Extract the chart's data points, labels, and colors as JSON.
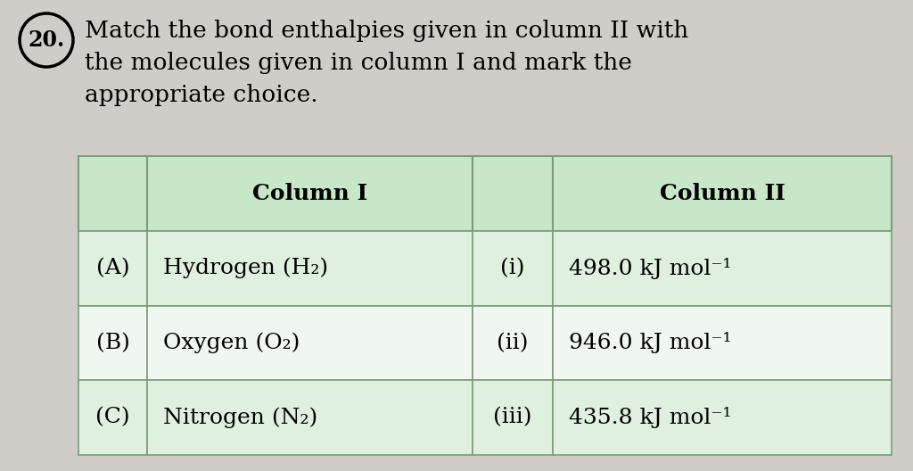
{
  "question_number": "20.",
  "question_text_line1": "Match the bond enthalpies given in column II with",
  "question_text_line2": "the molecules given in column I and mark the",
  "question_text_line3": "appropriate choice.",
  "background_color": "#d8d8d8",
  "table_header_bg": "#c8e6c8",
  "table_row_bg_light": "#dff0df",
  "table_row_bg_white": "#f0f7f0",
  "table_border_color": "#7a9e7a",
  "col1_header": "Column I",
  "col2_header": "Column II",
  "rows": [
    {
      "label": "(A)",
      "col1": "Hydrogen (H₂)",
      "roman": "(i)",
      "col2": "498.0 kJ mol⁻¹"
    },
    {
      "label": "(B)",
      "col1": "Oxygen (O₂)",
      "roman": "(ii)",
      "col2": "946.0 kJ mol⁻¹"
    },
    {
      "label": "(C)",
      "col1": "Nitrogen (N₂)",
      "roman": "(iii)",
      "col2": "435.8 kJ mol⁻¹"
    }
  ],
  "circle_number": "20.",
  "font_size_question": 19,
  "font_size_table": 18,
  "font_size_header": 18
}
